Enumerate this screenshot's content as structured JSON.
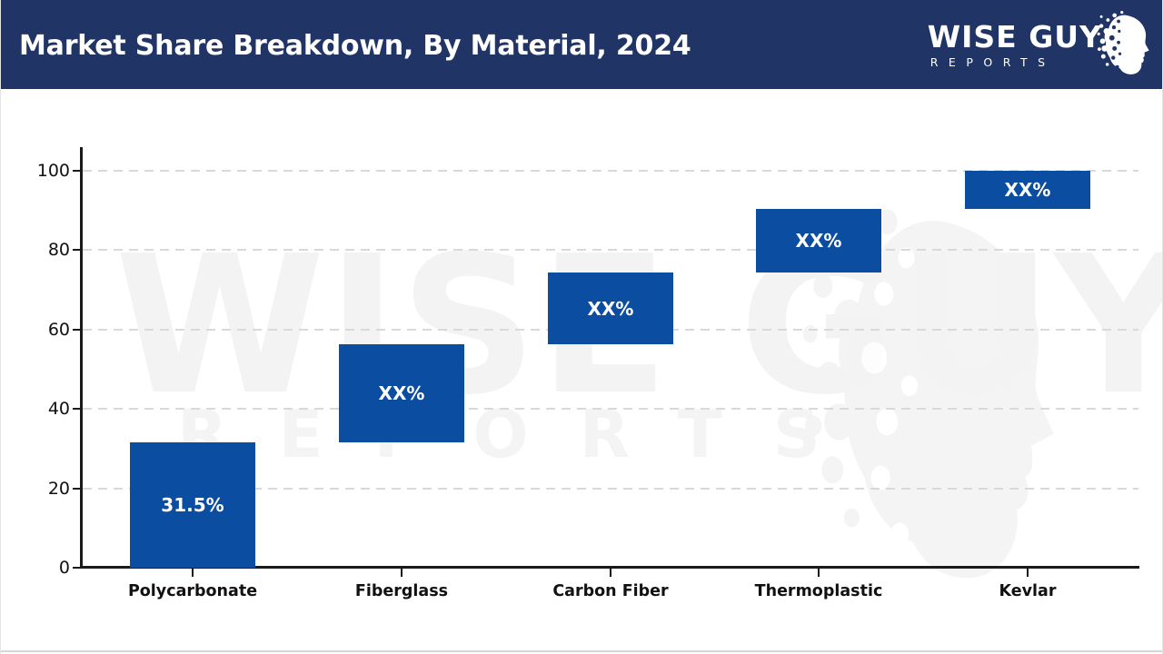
{
  "header": {
    "title": "Market Share Breakdown, By Material, 2024",
    "bg_color": "#203565",
    "logo": {
      "line1": "WISE GUY",
      "line2": "REPORTS"
    }
  },
  "watermark": {
    "line1": "WISE GUY",
    "line2": "REPORTS"
  },
  "chart_data": {
    "type": "bar",
    "subtype": "waterfall",
    "title": "Market Share Breakdown, By Material, 2024",
    "categories": [
      "Polycarbonate",
      "Fiberglass",
      "Carbon Fiber",
      "Thermoplastic",
      "Kevlar"
    ],
    "segments": [
      {
        "category": "Polycarbonate",
        "start": 0,
        "end": 31.5,
        "label": "31.5%"
      },
      {
        "category": "Fiberglass",
        "start": 31.5,
        "end": 56.2,
        "label": "XX%"
      },
      {
        "category": "Carbon Fiber",
        "start": 56.2,
        "end": 74.2,
        "label": "XX%"
      },
      {
        "category": "Thermoplastic",
        "start": 74.2,
        "end": 90.4,
        "label": "XX%"
      },
      {
        "category": "Kevlar",
        "start": 90.4,
        "end": 100,
        "label": "XX%"
      }
    ],
    "yticks": [
      0,
      20,
      40,
      60,
      80,
      100
    ],
    "ylim": [
      0,
      106
    ],
    "xlabel": "",
    "ylabel": "",
    "legend": "none",
    "grid": "horizontal-dashed",
    "bar_color": "#0b4da1",
    "bar_label_color": "#ffffff",
    "axis_color": "#1a1a1a",
    "gridline_color": "#d9d9d9"
  }
}
